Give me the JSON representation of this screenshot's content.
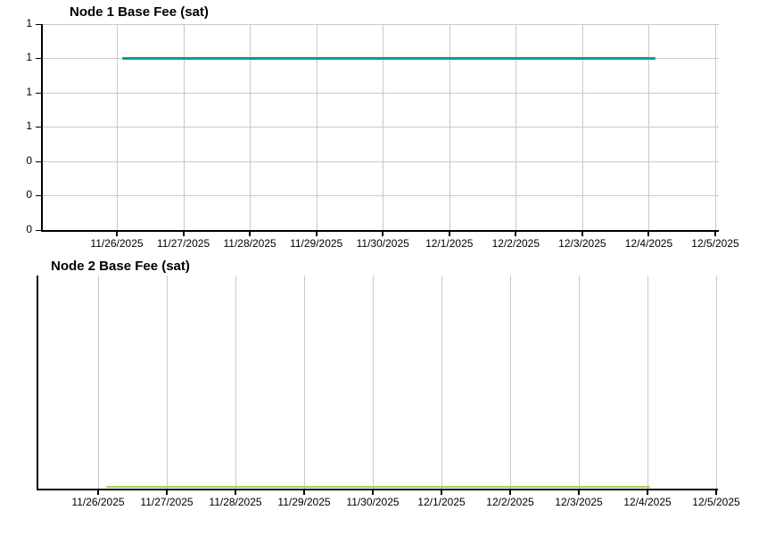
{
  "charts": [
    {
      "title": "Node 1 Base Fee (sat)",
      "line_color": "#0f9b9b",
      "y_tick_labels": [
        "1",
        "1",
        "1",
        "1",
        "0",
        "0",
        "0"
      ],
      "x_tick_labels": [
        "11/26/2025",
        "11/27/2025",
        "11/28/2025",
        "11/29/2025",
        "11/30/2025",
        "12/1/2025",
        "12/2/2025",
        "12/3/2025",
        "12/4/2025",
        "12/5/2025"
      ]
    },
    {
      "title": "Node 2 Base Fee (sat)",
      "line_color": "#a5cd57",
      "y_tick_labels": [],
      "x_tick_labels": [
        "11/26/2025",
        "11/27/2025",
        "11/28/2025",
        "11/29/2025",
        "11/30/2025",
        "12/1/2025",
        "12/2/2025",
        "12/3/2025",
        "12/4/2025",
        "12/5/2025"
      ]
    }
  ],
  "chart_data": [
    {
      "type": "line",
      "title": "Node 1 Base Fee (sat)",
      "xlabel": "",
      "ylabel": "",
      "x_ticks": [
        "11/26/2025",
        "11/27/2025",
        "11/28/2025",
        "11/29/2025",
        "11/30/2025",
        "12/1/2025",
        "12/2/2025",
        "12/3/2025",
        "12/4/2025",
        "12/5/2025"
      ],
      "ylim": [
        0,
        1.2
      ],
      "y_ticks": [
        0,
        0.2,
        0.4,
        0.6,
        0.8,
        1,
        1.2
      ],
      "y_tick_labels_displayed": [
        "0",
        "0",
        "0",
        "1",
        "1",
        "1",
        "1"
      ],
      "grid": "both",
      "legend": "none",
      "series": [
        {
          "name": "Node 1 base fee (sat)",
          "color": "#0f9b9b",
          "x": [
            "11/26/2025",
            "11/27/2025",
            "11/28/2025",
            "11/29/2025",
            "11/30/2025",
            "12/1/2025",
            "12/2/2025",
            "12/3/2025",
            "12/4/2025"
          ],
          "values": [
            1,
            1,
            1,
            1,
            1,
            1,
            1,
            1,
            1
          ]
        }
      ]
    },
    {
      "type": "line",
      "title": "Node 2 Base Fee (sat)",
      "xlabel": "",
      "ylabel": "",
      "x_ticks": [
        "11/26/2025",
        "11/27/2025",
        "11/28/2025",
        "11/29/2025",
        "11/30/2025",
        "12/1/2025",
        "12/2/2025",
        "12/3/2025",
        "12/4/2025",
        "12/5/2025"
      ],
      "ylim": [
        0,
        1
      ],
      "y_ticks": [],
      "y_tick_labels_displayed": [],
      "grid": "vertical",
      "legend": "none",
      "series": [
        {
          "name": "Node 2 base fee (sat)",
          "color": "#a5cd57",
          "x": [
            "11/26/2025",
            "11/27/2025",
            "11/28/2025",
            "11/29/2025",
            "11/30/2025",
            "12/1/2025",
            "12/2/2025",
            "12/3/2025",
            "12/4/2025"
          ],
          "values": [
            0,
            0,
            0,
            0,
            0,
            0,
            0,
            0,
            0
          ]
        }
      ]
    }
  ]
}
